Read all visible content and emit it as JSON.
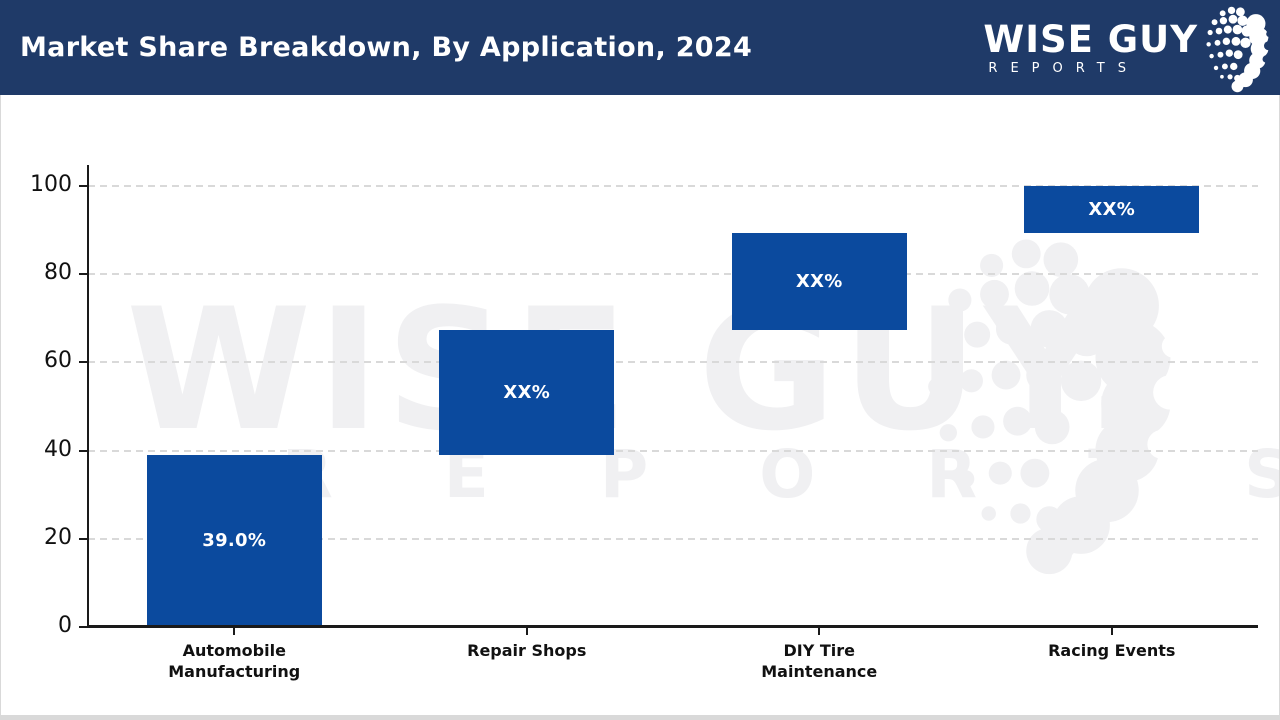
{
  "header": {
    "title": "Market Share Breakdown, By Application, 2024",
    "logo": {
      "line1": "WISE GUY",
      "line2": "REPORTS"
    }
  },
  "watermark": {
    "line1": "WISE GUY.",
    "line2": "R E P O R T S"
  },
  "colors": {
    "header_bg": "#1f3a68",
    "bar": "#0b4a9e",
    "watermark": "#f0f0f2",
    "grid": "#d9d9d9",
    "axis": "#1a1a1a"
  },
  "chart_data": {
    "type": "bar",
    "subtype": "waterfall",
    "title": "Market Share Breakdown, By Application, 2024",
    "categories": [
      "Automobile Manufacturing",
      "Repair Shops",
      "DIY Tire Maintenance",
      "Racing Events"
    ],
    "category_lines": [
      [
        "Automobile",
        "Manufacturing"
      ],
      [
        "Repair Shops"
      ],
      [
        "DIY Tire",
        "Maintenance"
      ],
      [
        "Racing Events"
      ]
    ],
    "segments": [
      {
        "start": 0,
        "end": 39.0,
        "label": "39.0%"
      },
      {
        "start": 39.0,
        "end": 67.3,
        "label": "XX%"
      },
      {
        "start": 67.3,
        "end": 89.3,
        "label": "XX%"
      },
      {
        "start": 89.3,
        "end": 100.0,
        "label": "XX%"
      }
    ],
    "ylim": [
      0,
      100
    ],
    "yticks": [
      0,
      20,
      40,
      60,
      80,
      100
    ],
    "xlabel": "",
    "ylabel": "",
    "grid": "horizontal-dashed",
    "legend": "none"
  }
}
